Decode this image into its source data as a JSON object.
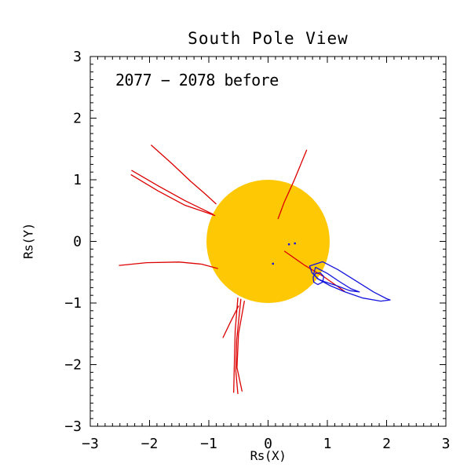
{
  "title": "South Pole View",
  "annotation": "2077 − 2078 before",
  "axis": {
    "xlabel": "Rs(X)",
    "ylabel": "Rs(Y)"
  },
  "colors": {
    "background": "#ffffff",
    "axis": "#000000",
    "sun": "#ffc805",
    "red_lines": "#dd0000",
    "blue_lines": "#1515dd",
    "text": "#000000"
  },
  "chart_data": {
    "type": "line",
    "title": "South Pole View",
    "annotation": "2077 − 2078 before",
    "xlabel": "Rs(X)",
    "ylabel": "Rs(Y)",
    "xlim": [
      -3,
      3
    ],
    "ylim": [
      -3,
      3
    ],
    "grid": false,
    "legend": "none",
    "x_tick_labels": [
      "−3",
      "−2",
      "−1",
      "0",
      "1",
      "2",
      "3"
    ],
    "y_tick_labels": [
      "−3",
      "−2",
      "−1",
      "0",
      "1",
      "2",
      "3"
    ],
    "x_ticks": [
      -3,
      -2,
      -1,
      0,
      1,
      2,
      3
    ],
    "y_ticks": [
      -3,
      -2,
      -1,
      0,
      1,
      2,
      3
    ],
    "minor_per_major": 8,
    "sun_disk": {
      "center": [
        0,
        0
      ],
      "radius_rs": 1.0,
      "color": "#ffc805"
    },
    "series": [
      {
        "name": "red-field-line-upper-left-1",
        "color": "#dd0000",
        "closed": false,
        "points": [
          [
            -1.97,
            1.56
          ],
          [
            -1.62,
            1.26
          ],
          [
            -1.3,
            0.97
          ],
          [
            -1.06,
            0.77
          ],
          [
            -0.88,
            0.61
          ]
        ]
      },
      {
        "name": "red-field-line-upper-left-2",
        "color": "#dd0000",
        "closed": false,
        "points": [
          [
            -2.3,
            1.15
          ],
          [
            -1.85,
            0.9
          ],
          [
            -1.4,
            0.66
          ],
          [
            -0.93,
            0.44
          ]
        ]
      },
      {
        "name": "red-field-line-upper-left-3",
        "color": "#dd0000",
        "closed": false,
        "points": [
          [
            -2.31,
            1.08
          ],
          [
            -1.86,
            0.82
          ],
          [
            -1.41,
            0.59
          ],
          [
            -0.9,
            0.42
          ]
        ]
      },
      {
        "name": "red-field-line-left-horizontal",
        "color": "#dd0000",
        "closed": false,
        "points": [
          [
            -2.51,
            -0.39
          ],
          [
            -2.05,
            -0.345
          ],
          [
            -1.5,
            -0.335
          ],
          [
            -1.12,
            -0.37
          ],
          [
            -0.85,
            -0.44
          ]
        ]
      },
      {
        "name": "red-field-line-upper-right",
        "color": "#dd0000",
        "closed": false,
        "points": [
          [
            0.65,
            1.48
          ],
          [
            0.44,
            0.99
          ],
          [
            0.27,
            0.63
          ],
          [
            0.17,
            0.37
          ]
        ]
      },
      {
        "name": "red-field-line-to-loops",
        "color": "#dd0000",
        "closed": false,
        "points": [
          [
            0.28,
            -0.16
          ],
          [
            0.62,
            -0.39
          ],
          [
            0.95,
            -0.58
          ],
          [
            1.29,
            -0.81
          ]
        ]
      },
      {
        "name": "red-field-line-bottom-1",
        "color": "#dd0000",
        "closed": false,
        "points": [
          [
            -0.51,
            -0.92
          ],
          [
            -0.555,
            -1.45
          ],
          [
            -0.57,
            -2.0
          ],
          [
            -0.58,
            -2.45
          ]
        ]
      },
      {
        "name": "red-field-line-bottom-2",
        "color": "#dd0000",
        "closed": false,
        "points": [
          [
            -0.46,
            -0.94
          ],
          [
            -0.53,
            -1.6
          ],
          [
            -0.545,
            -2.1
          ],
          [
            -0.51,
            -2.47
          ]
        ]
      },
      {
        "name": "red-field-line-bottom-3",
        "color": "#dd0000",
        "closed": false,
        "points": [
          [
            -0.4,
            -0.97
          ],
          [
            -0.5,
            -1.5
          ],
          [
            -0.525,
            -2.05
          ],
          [
            -0.44,
            -2.43
          ]
        ]
      },
      {
        "name": "red-field-line-bottom-spur",
        "color": "#dd0000",
        "closed": false,
        "points": [
          [
            -0.5,
            -1.05
          ],
          [
            -0.63,
            -1.3
          ],
          [
            -0.76,
            -1.56
          ]
        ]
      },
      {
        "name": "blue-loop-outer",
        "color": "#1515dd",
        "closed": true,
        "points": [
          [
            0.7,
            -0.4
          ],
          [
            0.92,
            -0.33
          ],
          [
            1.18,
            -0.46
          ],
          [
            1.48,
            -0.64
          ],
          [
            1.78,
            -0.82
          ],
          [
            2.0,
            -0.93
          ],
          [
            2.06,
            -0.95
          ],
          [
            1.9,
            -0.97
          ],
          [
            1.6,
            -0.92
          ],
          [
            1.3,
            -0.82
          ],
          [
            1.05,
            -0.72
          ],
          [
            0.86,
            -0.62
          ],
          [
            0.74,
            -0.51
          ]
        ]
      },
      {
        "name": "blue-loop-inner",
        "color": "#1515dd",
        "closed": true,
        "points": [
          [
            0.8,
            -0.42
          ],
          [
            1.0,
            -0.52
          ],
          [
            1.2,
            -0.65
          ],
          [
            1.4,
            -0.77
          ],
          [
            1.54,
            -0.82
          ],
          [
            1.38,
            -0.8
          ],
          [
            1.16,
            -0.72
          ],
          [
            0.97,
            -0.66
          ],
          [
            0.84,
            -0.61
          ],
          [
            0.77,
            -0.53
          ]
        ]
      },
      {
        "name": "blue-loop-small",
        "color": "#1515dd",
        "closed": true,
        "points": [
          [
            0.76,
            -0.58
          ],
          [
            0.8,
            -0.52
          ],
          [
            0.88,
            -0.51
          ],
          [
            0.94,
            -0.57
          ],
          [
            0.92,
            -0.66
          ],
          [
            0.84,
            -0.7
          ],
          [
            0.77,
            -0.66
          ]
        ]
      }
    ],
    "point_markers": [
      {
        "name": "blue-dot-1",
        "x": 0.35,
        "y": -0.045,
        "color": "#1515dd"
      },
      {
        "name": "blue-dot-2",
        "x": 0.45,
        "y": -0.03,
        "color": "#1515dd"
      },
      {
        "name": "blue-dot-3",
        "x": 0.08,
        "y": -0.36,
        "color": "#1515dd"
      }
    ]
  }
}
